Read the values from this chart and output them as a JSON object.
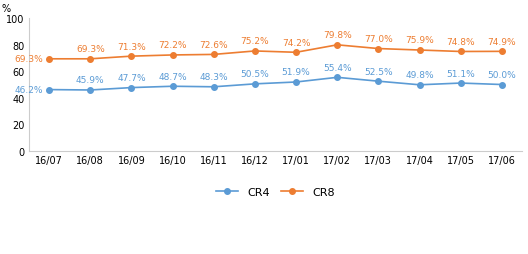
{
  "categories": [
    "16/07",
    "16/08",
    "16/09",
    "16/10",
    "16/11",
    "16/12",
    "17/01",
    "17/02",
    "17/03",
    "17/04",
    "17/05",
    "17/06"
  ],
  "cr4": [
    46.2,
    45.9,
    47.7,
    48.7,
    48.3,
    50.5,
    51.9,
    55.4,
    52.5,
    49.8,
    51.1,
    50.0
  ],
  "cr8": [
    69.3,
    69.3,
    71.3,
    72.2,
    72.6,
    75.2,
    74.2,
    79.8,
    77.0,
    75.9,
    74.8,
    74.9
  ],
  "cr4_color": "#5b9bd5",
  "cr8_color": "#ed7d31",
  "ylim": [
    0,
    100
  ],
  "yticks": [
    0,
    20,
    40,
    60,
    80,
    100
  ],
  "ylabel": "%",
  "legend_labels": [
    "CR4",
    "CR8"
  ],
  "marker": "o",
  "linewidth": 1.2,
  "markersize": 4,
  "label_fontsize": 6.5,
  "tick_fontsize": 7,
  "legend_fontsize": 8,
  "bg_color": "#ffffff"
}
